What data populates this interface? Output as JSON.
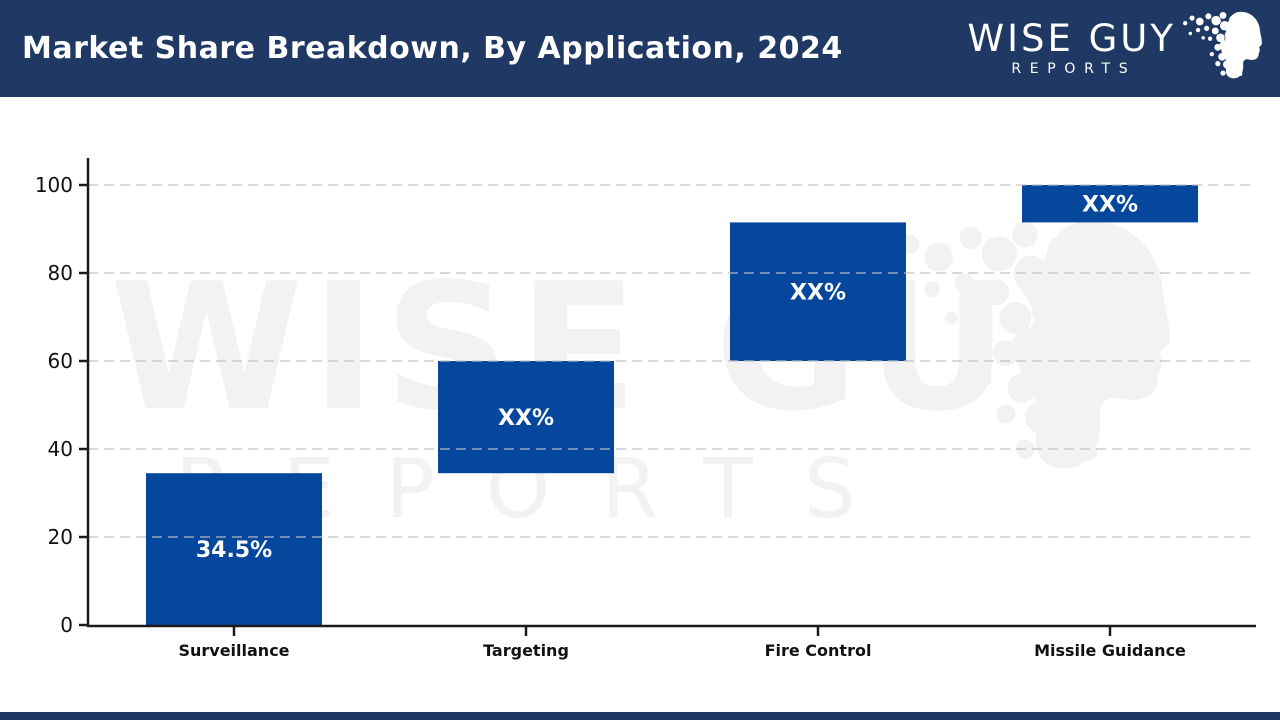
{
  "header": {
    "title": "Market Share Breakdown, By Application, 2024",
    "logo": {
      "line1": "WISE GUY",
      "line2": "REPORTS"
    }
  },
  "watermark": {
    "line1": "WISE GUY",
    "line2": "REPORTS"
  },
  "colors": {
    "header_bg": "#1f3864",
    "footer_bg": "#1f3864",
    "bar": "#04479c",
    "bar_label": "#ffffff",
    "axis": "#1a1a1a",
    "tick_label": "#111111",
    "grid_rgba": "rgba(190,190,190,0.6)",
    "watermark": "#f2f2f2"
  },
  "chart_data": {
    "type": "bar",
    "subtype": "waterfall-floating-bars",
    "title": "Market Share Breakdown, By Application, 2024",
    "xlabel": "",
    "ylabel": "",
    "categories": [
      "Surveillance",
      "Targeting",
      "Fire Control",
      "Missile Guidance"
    ],
    "segments": [
      {
        "category": "Surveillance",
        "start": 0,
        "end": 34.5,
        "label": "34.5%"
      },
      {
        "category": "Targeting",
        "start": 34.5,
        "end": 60,
        "label": "XX%"
      },
      {
        "category": "Fire Control",
        "start": 60,
        "end": 91.5,
        "label": "XX%"
      },
      {
        "category": "Missile Guidance",
        "start": 91.5,
        "end": 100,
        "label": "XX%"
      }
    ],
    "yticks": [
      0,
      20,
      40,
      60,
      80,
      100
    ],
    "ylim": [
      0,
      106
    ],
    "grid": "dashed-horizontal",
    "legend": "none"
  }
}
